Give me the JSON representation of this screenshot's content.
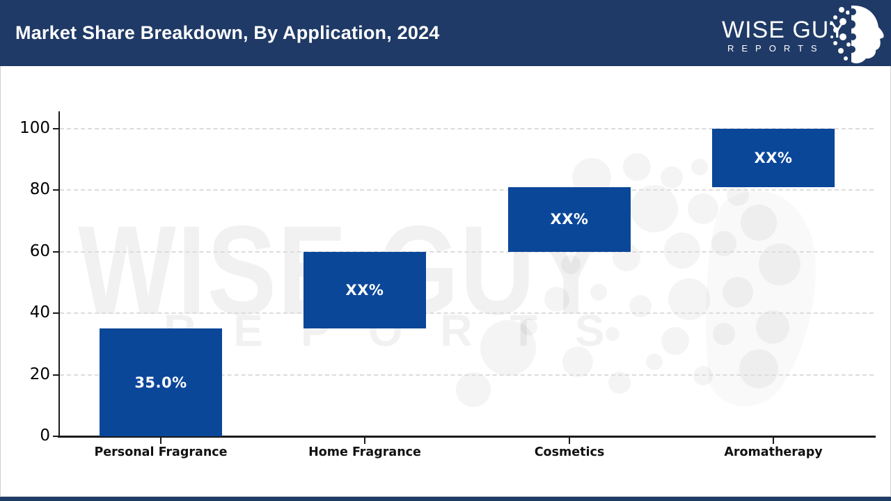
{
  "header": {
    "title": "Market Share Breakdown, By Application, 2024"
  },
  "logo": {
    "line1": "WISE GUY",
    "line2": "REPORTS",
    "icon": "dotted-head-profile"
  },
  "watermark": {
    "line1": "WISE GUY",
    "line2": "REPORTS"
  },
  "colors": {
    "header_bg": "#1f3a66",
    "footer_bg": "#1f3a66",
    "bar": "#0b4799",
    "bar_label": "#ffffff",
    "grid": "#dcdcdc",
    "axis": "#1a1a1a"
  },
  "chart_data": {
    "type": "bar",
    "subtype": "waterfall",
    "title": "Market Share Breakdown, By Application, 2024",
    "categories": [
      "Personal Fragrance",
      "Home Fragrance",
      "Cosmetics",
      "Aromatherapy"
    ],
    "series": [
      {
        "name": "Market Share (%)",
        "segments": [
          {
            "category": "Personal Fragrance",
            "start": 0,
            "end": 35,
            "label": "35.0%"
          },
          {
            "category": "Home Fragrance",
            "start": 35,
            "end": 60,
            "label": "XX%"
          },
          {
            "category": "Cosmetics",
            "start": 60,
            "end": 81,
            "label": "XX%"
          },
          {
            "category": "Aromatherapy",
            "start": 81,
            "end": 100,
            "label": "XX%"
          }
        ]
      }
    ],
    "xlabel": "",
    "ylabel": "",
    "ylim": [
      0,
      105
    ],
    "yticks": [
      0,
      20,
      40,
      60,
      80,
      100
    ],
    "grid": "horizontal-dashed",
    "legend": "none"
  }
}
